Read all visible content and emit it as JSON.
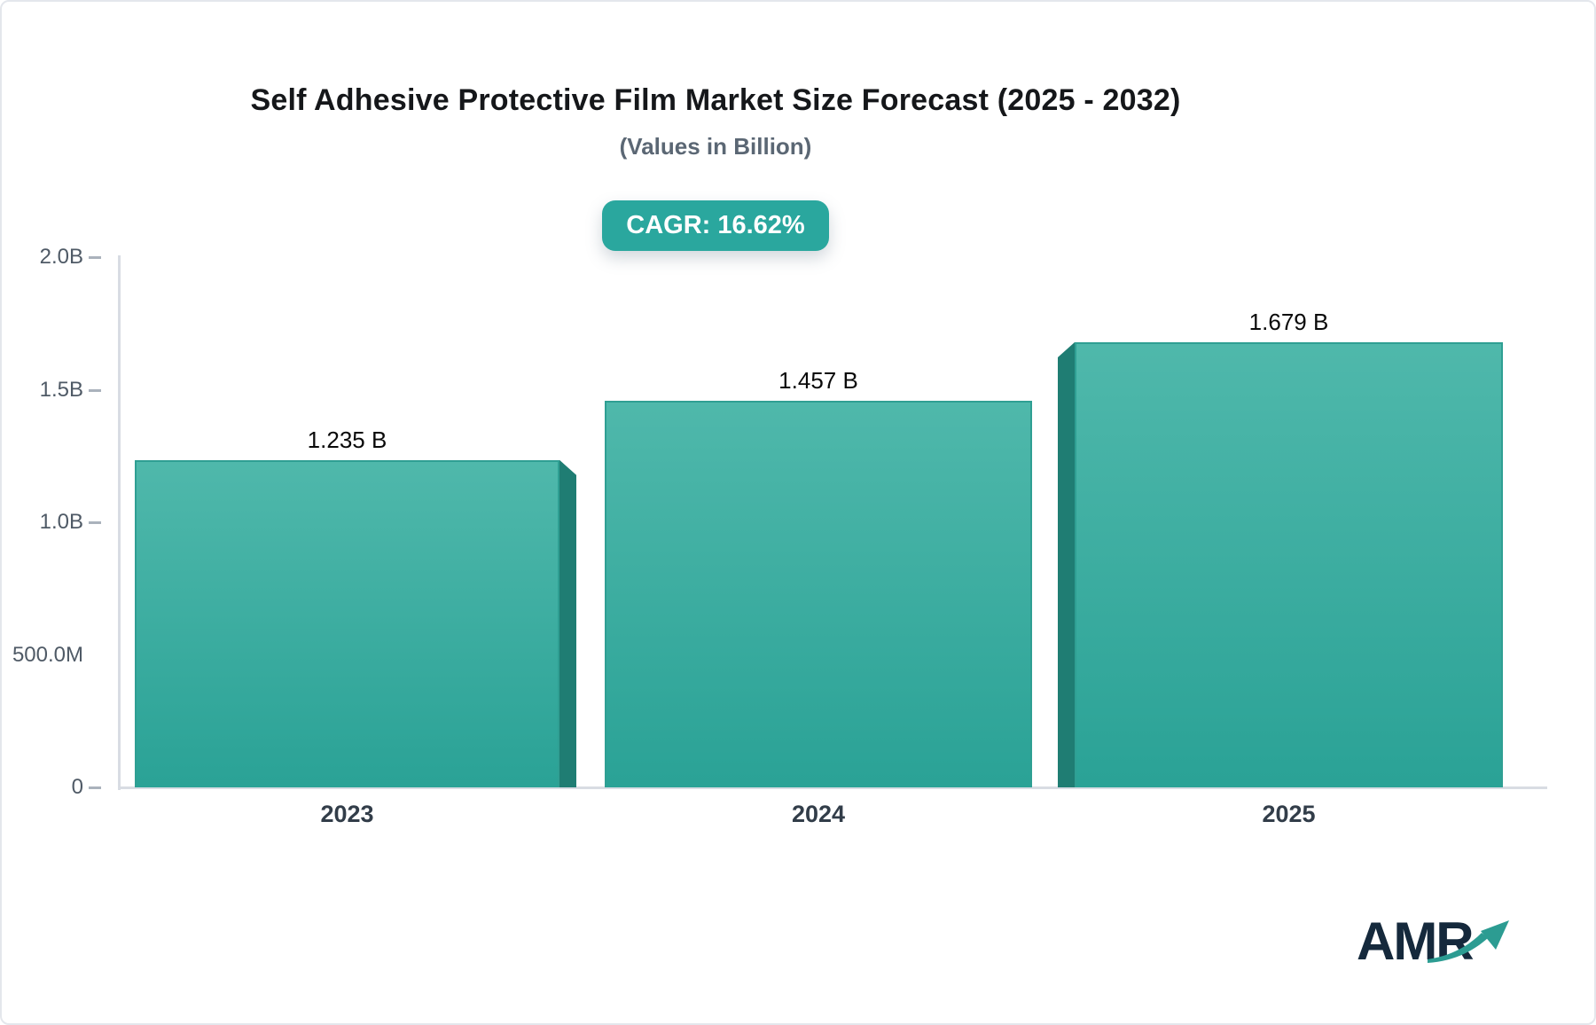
{
  "header": {
    "title": "Self Adhesive Protective Film Market Size Forecast (2025 - 2032)",
    "subtitle": "(Values in Billion)",
    "cagr_badge": "CAGR: 16.62%"
  },
  "chart_data": {
    "type": "bar",
    "title": "Self Adhesive Protective Film Market Size Forecast (2025 - 2032)",
    "subtitle": "(Values in Billion)",
    "cagr": "16.62%",
    "categories": [
      "2023",
      "2024",
      "2025"
    ],
    "values": [
      1.235,
      1.457,
      1.679
    ],
    "value_labels": [
      "1.235 B",
      "1.457 B",
      "1.679 B"
    ],
    "ylim": [
      0,
      2.0
    ],
    "yticks": [
      {
        "value": 2.0,
        "label": "2.0B",
        "tick_mark": true
      },
      {
        "value": 1.5,
        "label": "1.5B",
        "tick_mark": true
      },
      {
        "value": 1.0,
        "label": "1.0B",
        "tick_mark": true
      },
      {
        "value": 0.5,
        "label": "500.0M",
        "tick_mark": false
      },
      {
        "value": 0.0,
        "label": "0",
        "tick_mark": true
      }
    ],
    "grid": false,
    "legend": false,
    "colors": {
      "bar_gradient_top": "#4fb8ab",
      "bar_gradient_bottom": "#2aa296",
      "bar_border": "#2f9f93",
      "bar_side_face": "#1f7d73",
      "badge_background": "#2aa79e",
      "axis_line": "#d8dce3",
      "tick_text": "#4f5a66",
      "logo_navy": "#15293c",
      "logo_arrow_teal": "#2c9c92"
    }
  },
  "footer": {
    "logo_text": "AMR"
  }
}
